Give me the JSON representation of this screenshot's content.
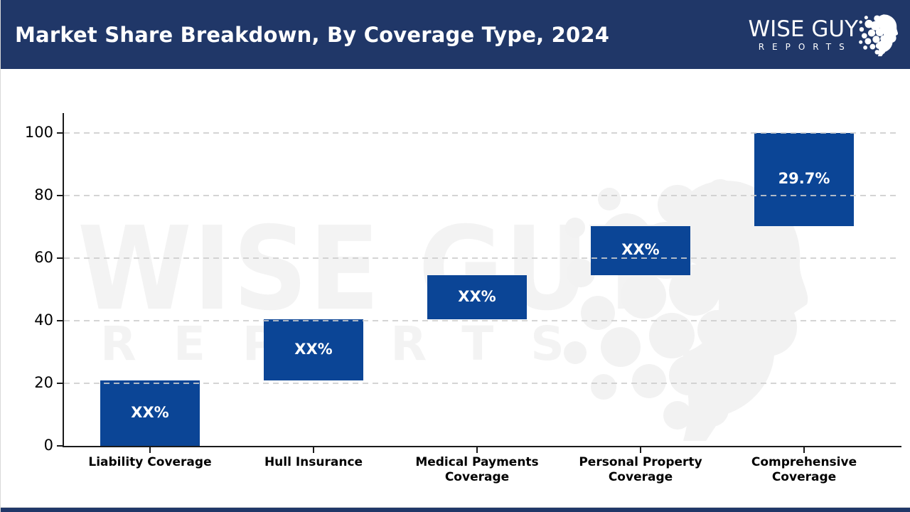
{
  "header": {
    "title": "Market Share Breakdown, By Coverage Type, 2024",
    "brand_line1": "WISE GUY",
    "brand_line2": "REPORTS",
    "bg_color": "#203768"
  },
  "watermark": {
    "line1": "WISE GUY",
    "line2": "REPORTS"
  },
  "chart_data": {
    "type": "bar",
    "variant": "floating-waterfall",
    "title": "Market Share Breakdown, By Coverage Type, 2024",
    "categories": [
      "Liability Coverage",
      "Hull Insurance",
      "Medical Payments Coverage",
      "Personal Property Coverage",
      "Comprehensive Coverage"
    ],
    "bars": [
      {
        "category": "Liability Coverage",
        "start": 0,
        "end": 21,
        "label": "XX%"
      },
      {
        "category": "Hull Insurance",
        "start": 21,
        "end": 40.5,
        "label": "XX%"
      },
      {
        "category": "Medical Payments Coverage",
        "start": 40.5,
        "end": 54.5,
        "label": "XX%"
      },
      {
        "category": "Personal Property Coverage",
        "start": 54.5,
        "end": 70.3,
        "label": "XX%"
      },
      {
        "category": "Comprehensive Coverage",
        "start": 70.3,
        "end": 100,
        "label": "29.7%"
      }
    ],
    "yticks": [
      0,
      20,
      40,
      60,
      80,
      100
    ],
    "ylim": [
      0,
      106
    ],
    "grid": "horizontal-dashed",
    "legend": "none",
    "bar_color": "#0b4596",
    "bar_label_color": "#ffffff",
    "axis_color": "#1a1a1a"
  }
}
